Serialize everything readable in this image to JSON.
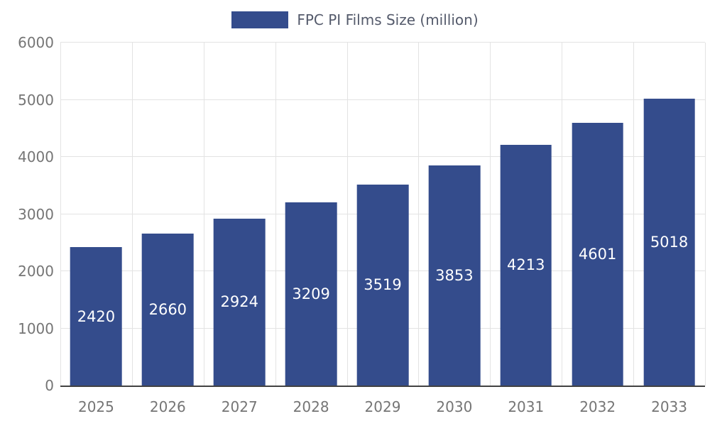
{
  "chart_data": {
    "type": "bar",
    "title": "FPC PI Films Size (million)",
    "legend": "FPC PI Films Size (million)",
    "categories": [
      "2025",
      "2026",
      "2027",
      "2028",
      "2029",
      "2030",
      "2031",
      "2032",
      "2033"
    ],
    "values": [
      2420,
      2660,
      2924,
      3209,
      3519,
      3853,
      4213,
      4601,
      5018
    ],
    "ylim": [
      0,
      6000
    ],
    "ytick_step": 1000,
    "yticks": [
      0,
      1000,
      2000,
      3000,
      4000,
      5000,
      6000
    ],
    "grid": true,
    "legend_position": "top",
    "bar_color": "#344c8c",
    "bar_label_color": "#ffffff",
    "axis_line_color": "#424242",
    "grid_color": "#e3e3e3",
    "tick_label_color": "#757575",
    "legend_text_color": "#545a6b"
  }
}
